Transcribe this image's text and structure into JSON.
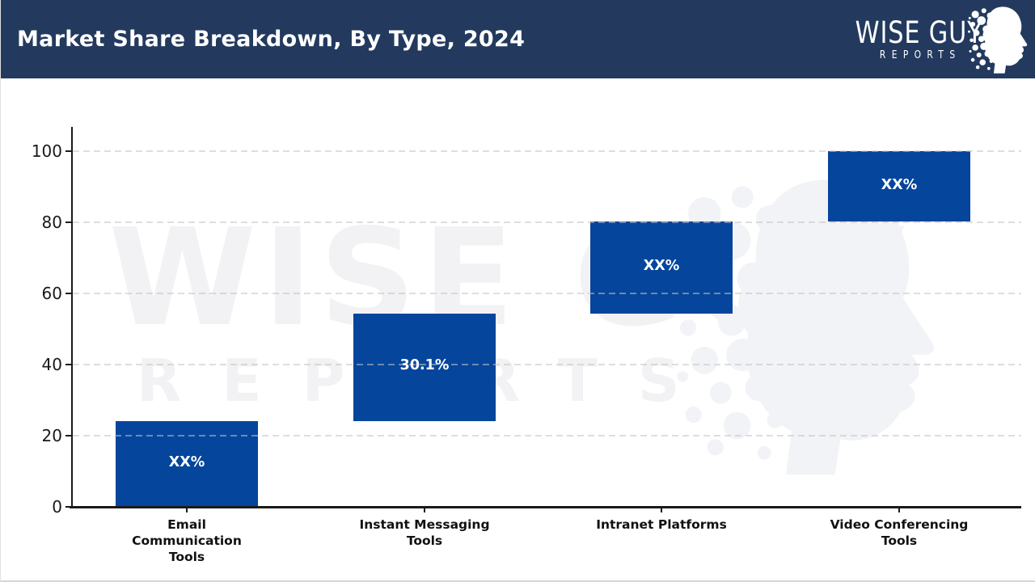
{
  "header": {
    "title": "Market Share Breakdown, By Type, 2024",
    "bg_color": "#233A5E",
    "logo": {
      "line1": "WISE GUY",
      "line2": "REPORTS"
    }
  },
  "watermark": {
    "line1": "WISE GUY",
    "line2": "REPORTS"
  },
  "chart_data": {
    "type": "bar",
    "subtype": "waterfall",
    "title": "Market Share Breakdown, By Type, 2024",
    "categories": [
      "Email\nCommunication\nTools",
      "Instant Messaging\nTools",
      "Intranet Platforms",
      "Video Conferencing\nTools"
    ],
    "segments": [
      {
        "label": "XX%",
        "start": 0,
        "end": 24.2
      },
      {
        "label": "30.1%",
        "start": 24.2,
        "end": 54.3
      },
      {
        "label": "XX%",
        "start": 54.3,
        "end": 80.2
      },
      {
        "label": "XX%",
        "start": 80.2,
        "end": 100
      }
    ],
    "bar_color": "#05459C",
    "value_label_color": "#FFFFFF",
    "yticks": [
      0,
      20,
      40,
      60,
      80,
      100
    ],
    "ylim": [
      0,
      105
    ],
    "xlabel": "",
    "ylabel": "",
    "grid": "dashed horizontal, drawn over bars",
    "legend": "none"
  }
}
